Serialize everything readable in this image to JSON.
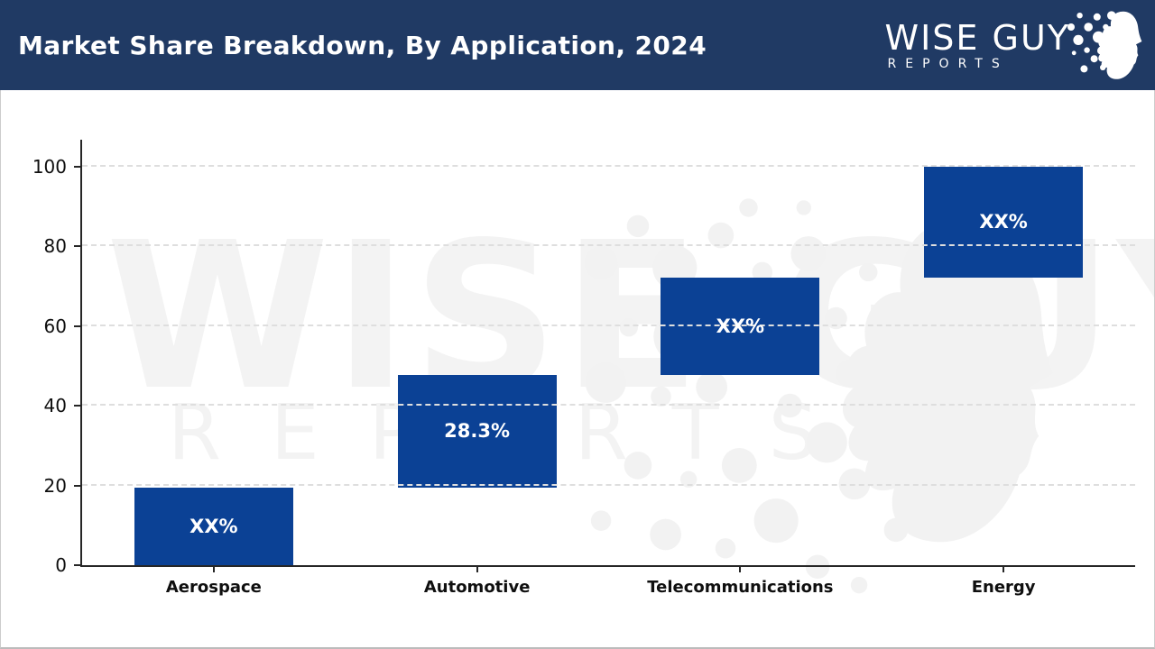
{
  "header": {
    "title": "Market Share Breakdown, By Application, 2024",
    "bg_color": "#203a64",
    "logo": {
      "line1": "WISE GUY",
      "line2": "REPORTS"
    }
  },
  "watermark": {
    "line1": "WISE GUY",
    "line2": "REPORTS"
  },
  "chart_data": {
    "type": "bar",
    "subtype": "waterfall",
    "title": "Market Share Breakdown, By Application, 2024",
    "categories": [
      "Aerospace",
      "Automotive",
      "Telecommunications",
      "Energy"
    ],
    "segments": [
      {
        "category": "Aerospace",
        "start": 0,
        "end": 19.5,
        "label": "XX%"
      },
      {
        "category": "Automotive",
        "start": 19.5,
        "end": 47.8,
        "label": "28.3%"
      },
      {
        "category": "Telecommunications",
        "start": 47.8,
        "end": 72.1,
        "label": "XX%"
      },
      {
        "category": "Energy",
        "start": 72.1,
        "end": 100.0,
        "label": "XX%"
      }
    ],
    "xlabel": "",
    "ylabel": "",
    "ylim": [
      0,
      106.7
    ],
    "yticks": [
      0,
      20,
      40,
      60,
      80,
      100
    ],
    "grid": "horizontal-dashed-above-bars",
    "legend": "none",
    "bar_color": "#0b4195",
    "bar_label_color": "#ffffff",
    "axis_color": "#262626"
  }
}
